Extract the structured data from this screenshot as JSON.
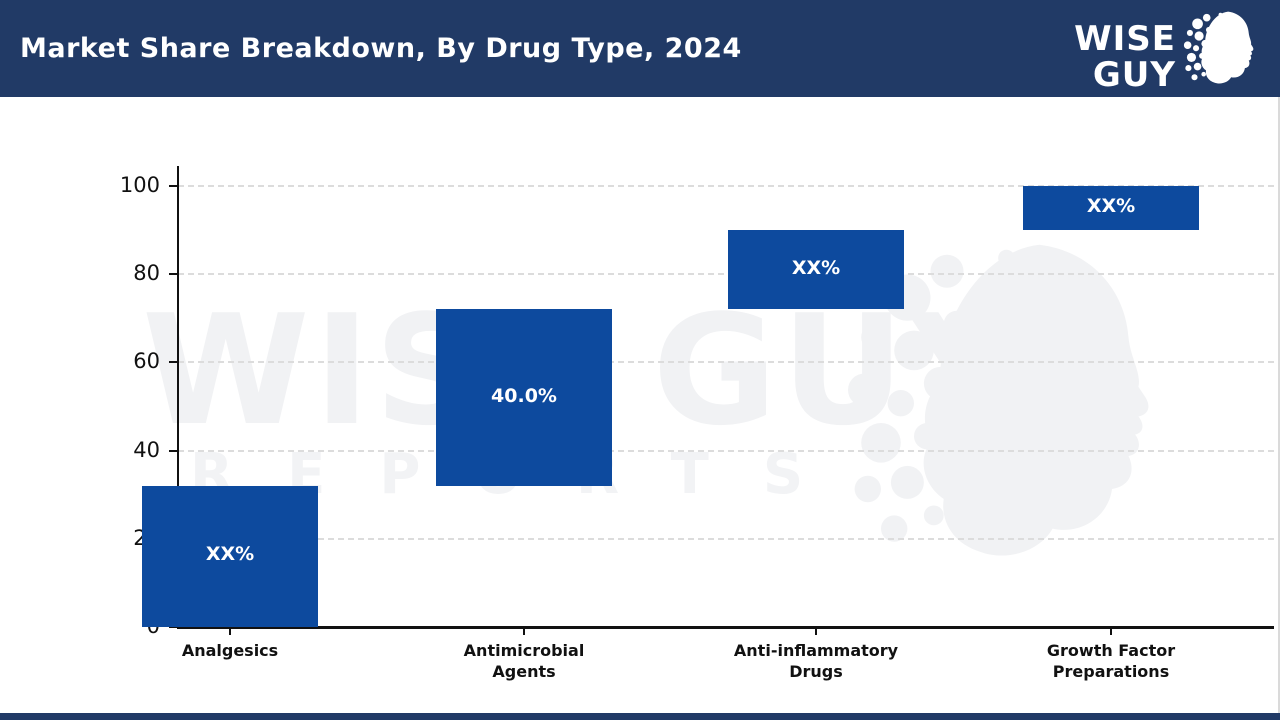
{
  "header": {
    "title": "Market Share Breakdown, By Drug Type, 2024",
    "bg_color": "#213a66",
    "logo": {
      "line1": "WISE GUY",
      "line2": "REPORTS"
    }
  },
  "watermark": {
    "line1": "WISE GUY",
    "line2": "REPORTS"
  },
  "chart_data": {
    "type": "bar",
    "subtype": "waterfall-stacked-breakdown",
    "title": "Market Share Breakdown, By Drug Type, 2024",
    "xlabel": "",
    "ylabel": "",
    "categories": [
      "Analgesics",
      "Antimicrobial Agents",
      "Anti-inflammatory Drugs",
      "Growth Factor Preparations"
    ],
    "series": [
      {
        "name": "Market share (%)",
        "values": [
          32,
          40,
          18,
          10
        ]
      }
    ],
    "bars": [
      {
        "category_lines": [
          "Analgesics"
        ],
        "start": 0,
        "end": 32,
        "label": "XX%"
      },
      {
        "category_lines": [
          "Antimicrobial",
          "Agents"
        ],
        "start": 32,
        "end": 72,
        "label": "40.0%"
      },
      {
        "category_lines": [
          "Anti-inflammatory",
          "Drugs"
        ],
        "start": 72,
        "end": 90,
        "label": "XX%"
      },
      {
        "category_lines": [
          "Growth Factor",
          "Preparations"
        ],
        "start": 90,
        "end": 100,
        "label": "XX%"
      }
    ],
    "yticks": [
      0,
      20,
      40,
      60,
      80,
      100
    ],
    "ylim": [
      0,
      105
    ],
    "grid": "horizontal-dashed",
    "gridline_color": "#dcdcdc",
    "bar_color": "#0d4a9e",
    "label_color": "#ffffff",
    "axis_color": "#111111",
    "legend": "none"
  }
}
